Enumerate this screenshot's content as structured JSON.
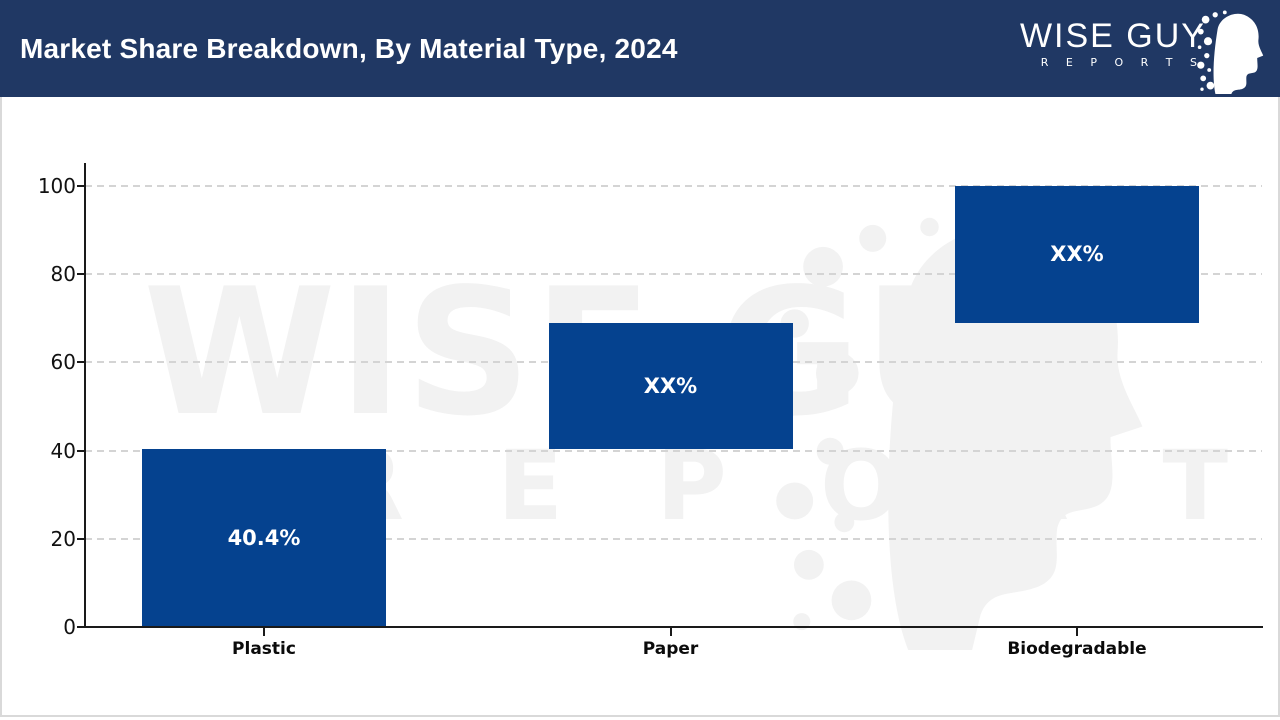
{
  "header": {
    "title": "Market Share Breakdown, By Material Type, 2024",
    "bg_color": "#203864",
    "logo": {
      "line1": "WISE GUY",
      "line2": "R E P O R T S"
    }
  },
  "watermark": {
    "line1": "WISE GUY",
    "line2": "R E P O R T S"
  },
  "chart_data": {
    "type": "bar",
    "variant": "floating-waterfall",
    "title": "Market Share Breakdown, By Material Type, 2024",
    "categories": [
      "Plastic",
      "Paper",
      "Biodegradable"
    ],
    "segments": [
      {
        "category": "Plastic",
        "start": 0,
        "end": 40.4,
        "label": "40.4%"
      },
      {
        "category": "Paper",
        "start": 40.4,
        "end": 69,
        "label": "XX%"
      },
      {
        "category": "Biodegradable",
        "start": 69,
        "end": 100,
        "label": "XX%"
      }
    ],
    "yticks": [
      0,
      20,
      40,
      60,
      80,
      100
    ],
    "ylim": [
      0,
      105
    ],
    "xlabel": "",
    "ylabel": "",
    "grid": "horizontal-dashed",
    "legend": "none",
    "bar_color": "#05428f",
    "bar_label_color": "#ffffff"
  }
}
